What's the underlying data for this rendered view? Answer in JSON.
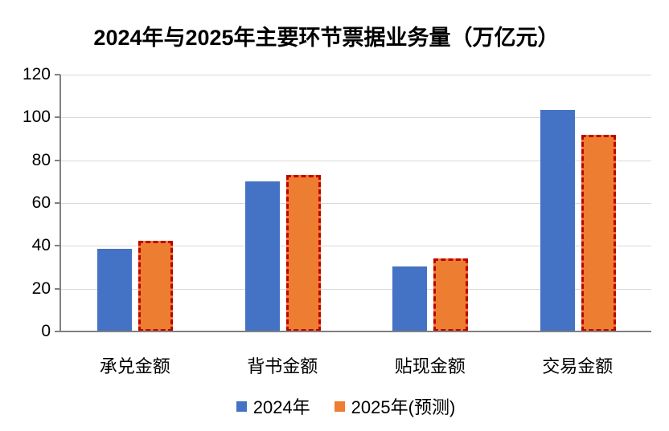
{
  "chart_data": {
    "type": "bar",
    "title": "2024年与2025年主要环节票据业务量（万亿元）",
    "categories": [
      "承兑金额",
      "背书金额",
      "贴现金额",
      "交易金额"
    ],
    "series": [
      {
        "name": "2024年",
        "values": [
          38.5,
          70,
          30.5,
          103.5
        ],
        "color": "#4472C4",
        "border": "none"
      },
      {
        "name": "2025年(预测)",
        "values": [
          42.5,
          73,
          34,
          92
        ],
        "color": "#ED7D31",
        "border": "dashed",
        "border_color": "#C00000"
      }
    ],
    "ylim": [
      0,
      120
    ],
    "yticks": [
      0,
      20,
      40,
      60,
      80,
      100,
      120
    ],
    "grid": true,
    "legend_position": "bottom",
    "colors": {
      "gridline": "#D9D9D9",
      "axis": "#808080",
      "text": "#000000",
      "background": "#FFFFFF"
    }
  }
}
